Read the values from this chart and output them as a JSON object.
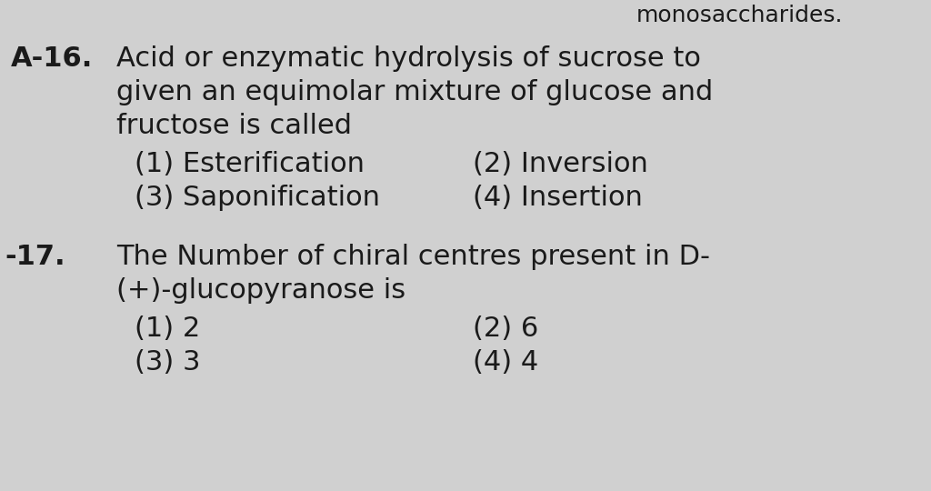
{
  "background_color": "#d0d0d0",
  "text_color": "#1a1a1a",
  "top_partial": "monosaccharides.",
  "q16_number": "A-16.",
  "q16_line1": "Acid or enzymatic hydrolysis of sucrose to",
  "q16_line2": "given an equimolar mixture of glucose and",
  "q16_line3": "fructose is called",
  "q16_opt1": "(1) Esterification",
  "q16_opt2": "(2) Inversion",
  "q16_opt3": "(3) Saponification",
  "q16_opt4": "(4) Insertion",
  "q17_number": "-17.",
  "q17_line1": "The Number of chiral centres present in D-",
  "q17_line2": "(+)-glucopyranose is",
  "q17_opt1": "(1) 2",
  "q17_opt2": "(2) 6",
  "q17_opt3": "(3) 3",
  "q17_opt4": "(4) 4",
  "font_size": 22.0,
  "font_size_top": 18.0
}
